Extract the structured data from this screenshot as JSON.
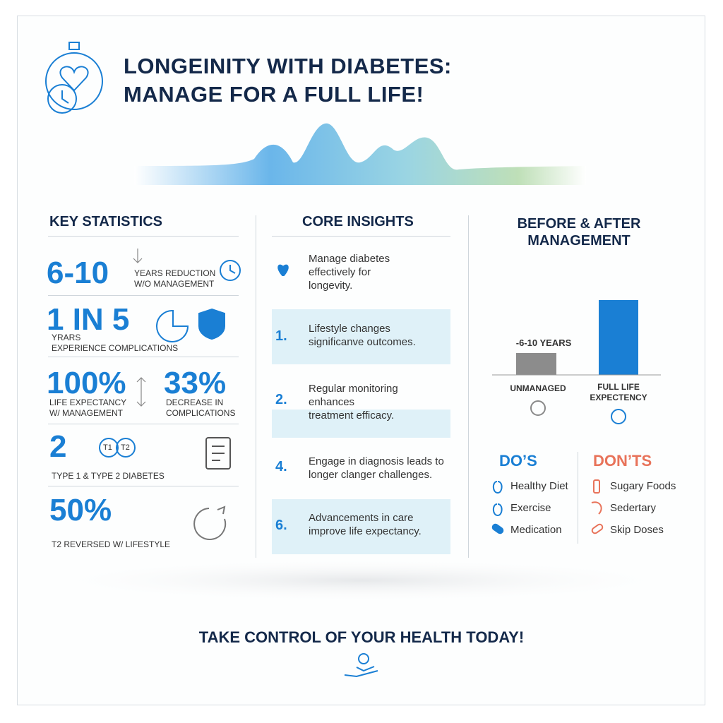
{
  "header": {
    "title_lines": [
      "LONGEINITY WITH DIABETES:",
      "MANAGE FOR A FULL LIFE!"
    ]
  },
  "key_statistics": {
    "heading": "KEY STATISTICS",
    "stats": [
      {
        "value": "6-10",
        "label_lines": [
          "YEARS REDUCTION",
          "W/O MANAGEMENT"
        ]
      },
      {
        "value": "1 IN 5",
        "label_lines": [
          "YRARS",
          "EXPERIENCE COMPLICATIONS"
        ]
      },
      {
        "value": "100%",
        "label_lines": [
          "LIFE EXPECTANCY",
          "W/ MANAGEMENT"
        ]
      },
      {
        "value": "33%",
        "label_lines": [
          "DECREASE IN",
          "COMPLICATIONS"
        ]
      },
      {
        "value": "2",
        "label_lines": [
          "TYPE 1 & TYPE 2 DIABETES"
        ],
        "badges": [
          "T1",
          "T2"
        ]
      },
      {
        "value": "50%",
        "label_lines": [
          "T2 REVERSED W/ LIFESTYLE"
        ]
      }
    ]
  },
  "core_insights": {
    "heading": "CORE INSIGHTS",
    "intro_lines": [
      "Manage diabetes",
      "effectively for",
      "longevity."
    ],
    "items": [
      {
        "number": "1.",
        "lines": [
          "Lifestyle changes",
          "significanve outcomes."
        ]
      },
      {
        "number": "2.",
        "lines": [
          "Regular monitoring",
          "enhances",
          "treatment efficacy."
        ]
      },
      {
        "number": "4.",
        "lines": [
          "Engage in diagnosis leads to",
          "longer clanger challenges."
        ]
      },
      {
        "number": "6.",
        "lines": [
          "Advancements in care",
          "improve life expectancy."
        ]
      }
    ]
  },
  "before_after": {
    "heading_lines": [
      "BEFORE & AFTER",
      "MANAGEMENT"
    ],
    "bar_note": "-6-10 YEARS",
    "labels": [
      [
        "UNMANAGED"
      ],
      [
        "FULL LIFE",
        "EXPECTENCY"
      ]
    ],
    "dos": {
      "heading": "DO’S",
      "items": [
        "Healthy Diet",
        "Exercise",
        "Medication"
      ]
    },
    "donts": {
      "heading": "DON’TS",
      "items": [
        "Sugary Foods",
        "Sedertary",
        "Skip Doses"
      ]
    }
  },
  "footer": {
    "cta": "TAKE CONTROL OF YOUR HEALTH TODAY!"
  }
}
